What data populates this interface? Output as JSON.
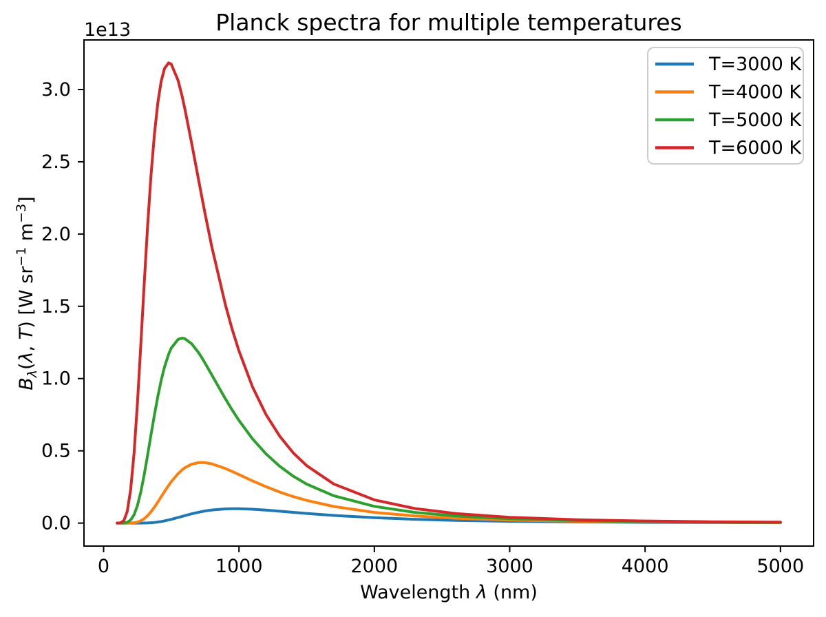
{
  "figure": {
    "title": "Planck spectra for multiple temperatures",
    "offset_text": "1e13"
  },
  "chart_data": {
    "type": "line",
    "title": "Planck spectra for multiple temperatures",
    "xlabel": "Wavelength λ (nm)",
    "ylabel": "B_λ(λ, T) [W sr^−1 m^−3]",
    "y_offset_text": "1e13",
    "y_units_note": "values in units of 1e13 W sr^-1 m^-3",
    "grid": false,
    "legend_position": "upper right",
    "xlim": [
      -145,
      5245
    ],
    "ylim": [
      -0.159,
      3.343
    ],
    "xticks": [
      0,
      1000,
      2000,
      3000,
      4000,
      5000
    ],
    "xtick_labels": [
      "0",
      "1000",
      "2000",
      "3000",
      "4000",
      "5000"
    ],
    "yticks": [
      0.0,
      0.5,
      1.0,
      1.5,
      2.0,
      2.5,
      3.0
    ],
    "ytick_labels": [
      "0.0",
      "0.5",
      "1.0",
      "1.5",
      "2.0",
      "2.5",
      "3.0"
    ],
    "x": [
      100,
      125,
      150,
      175,
      200,
      225,
      250,
      275,
      300,
      325,
      350,
      375,
      400,
      425,
      450,
      480,
      500,
      550,
      580,
      600,
      650,
      700,
      725,
      750,
      800,
      900,
      950,
      1000,
      1100,
      1200,
      1300,
      1400,
      1500,
      1700,
      2000,
      2300,
      2600,
      3000,
      3500,
      4000,
      4500,
      5000
    ],
    "series": [
      {
        "name": "T=3000 K",
        "color": "#1f77b4",
        "values": [
          0,
          0,
          0,
          0,
          0,
          0,
          0.0001,
          0.0002,
          0.0006,
          0.0013,
          0.0025,
          0.0045,
          0.0072,
          0.0108,
          0.0152,
          0.0214,
          0.026,
          0.0387,
          0.0465,
          0.0518,
          0.0642,
          0.0751,
          0.0798,
          0.084,
          0.0908,
          0.0983,
          0.0995,
          0.0992,
          0.0957,
          0.0896,
          0.0822,
          0.0745,
          0.0668,
          0.0531,
          0.0372,
          0.0263,
          0.0188,
          0.0124,
          0.0077,
          0.005,
          0.0034,
          0.0024
        ]
      },
      {
        "name": "T=4000 K",
        "color": "#ff7f0e",
        "values": [
          0,
          0,
          0,
          0.0001,
          0.0006,
          0.0024,
          0.0069,
          0.0158,
          0.0304,
          0.0513,
          0.078,
          0.1097,
          0.1447,
          0.1813,
          0.2181,
          0.2603,
          0.2865,
          0.3424,
          0.3684,
          0.3826,
          0.4072,
          0.4182,
          0.4194,
          0.4182,
          0.4099,
          0.3776,
          0.3572,
          0.3356,
          0.2922,
          0.2515,
          0.2152,
          0.1837,
          0.1568,
          0.115,
          0.0738,
          0.049,
          0.0335,
          0.0212,
          0.0126,
          0.008,
          0.0053,
          0.0036
        ]
      },
      {
        "name": "T=5000 K",
        "color": "#2ca02c",
        "values": [
          0,
          0,
          0.0007,
          0.0052,
          0.021,
          0.0577,
          0.1223,
          0.2162,
          0.3347,
          0.4692,
          0.6097,
          0.7472,
          0.8744,
          0.9863,
          1.0801,
          1.1674,
          1.2107,
          1.2713,
          1.2799,
          1.2762,
          1.2415,
          1.1812,
          1.145,
          1.1062,
          1.0243,
          0.8596,
          0.7823,
          0.7102,
          0.5832,
          0.4786,
          0.3937,
          0.3252,
          0.27,
          0.1892,
          0.1158,
          0.0742,
          0.0495,
          0.0305,
          0.0178,
          0.011,
          0.0072,
          0.0049
        ]
      },
      {
        "name": "T=6000 K",
        "color": "#d62728",
        "values": [
          0,
          0.0018,
          0.0179,
          0.0812,
          0.231,
          0.4858,
          0.8329,
          1.2369,
          1.656,
          2.0531,
          2.4019,
          2.6877,
          2.9051,
          3.0558,
          3.1457,
          3.1842,
          3.1757,
          3.0634,
          2.9529,
          2.8676,
          2.6313,
          2.3826,
          2.2594,
          2.1389,
          1.9096,
          1.5098,
          1.3407,
          1.191,
          0.9426,
          0.7506,
          0.6024,
          0.4873,
          0.3975,
          0.2707,
          0.1607,
          0.1008,
          0.0662,
          0.04,
          0.023,
          0.0142,
          0.0092,
          0.0062
        ]
      }
    ],
    "xlabel_parts": [
      {
        "text": "Wavelength "
      },
      {
        "text": "λ",
        "italic": true
      },
      {
        "text": " (nm)"
      }
    ],
    "ylabel_parts": [
      {
        "text": "B",
        "italic": true
      },
      {
        "text": "λ",
        "italic": true,
        "script": "sub"
      },
      {
        "text": "("
      },
      {
        "text": "λ",
        "italic": true
      },
      {
        "text": ", "
      },
      {
        "text": "T",
        "italic": true
      },
      {
        "text": ")  [W sr"
      },
      {
        "text": "−1",
        "script": "super"
      },
      {
        "text": " m"
      },
      {
        "text": "−3",
        "script": "super"
      },
      {
        "text": "]"
      }
    ]
  },
  "style_colors": {
    "axes_edge": "#000000",
    "legend_edge": "#cccccc",
    "background": "#ffffff"
  }
}
